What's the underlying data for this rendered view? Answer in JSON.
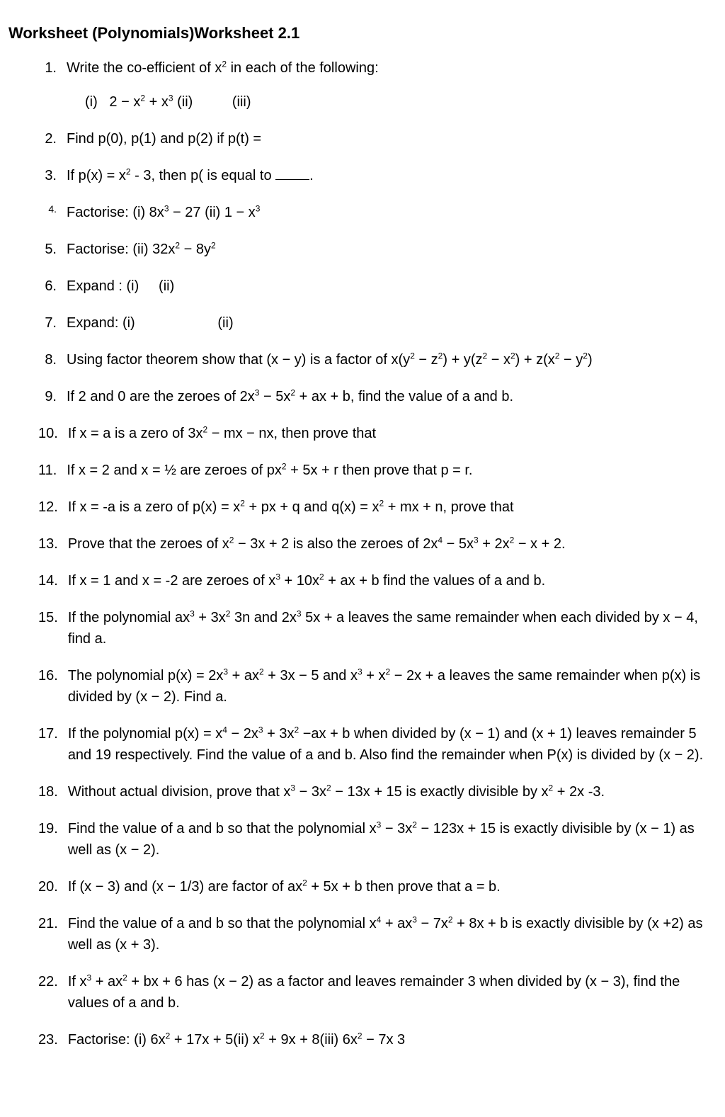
{
  "title": "Worksheet (Polynomials)Worksheet 2.1",
  "items": [
    {
      "n": "1.",
      "html": "Write the co-efficient of x<sup>2</sup> in each of the following:",
      "sub": "(i)&nbsp;&nbsp;&nbsp;2 − x<sup>2</sup> + x<sup>3</sup> (ii)&nbsp;&nbsp;&nbsp;&nbsp;&nbsp;&nbsp;&nbsp;&nbsp;&nbsp;&nbsp;(iii)"
    },
    {
      "n": "2.",
      "html": "Find p(0), p(1) and p(2) if p(t) ="
    },
    {
      "n": "3.",
      "html": "If p(x) = x<sup>2</sup> - 3, then p( is equal to <span class=\"blank\"></span>."
    },
    {
      "n": "4.",
      "small": true,
      "html": "Factorise: (i) 8x<sup>3</sup> − 27 (ii) 1 − x<sup>3</sup>"
    },
    {
      "n": "5.",
      "html": "Factorise: (ii) 32x<sup>2</sup> − 8y<sup>2</sup>"
    },
    {
      "n": "6.",
      "html": "Expand : (i)&nbsp;&nbsp;&nbsp;&nbsp;&nbsp;(ii)"
    },
    {
      "n": "7.",
      "html": "Expand: (i)&nbsp;&nbsp;&nbsp;&nbsp;&nbsp;&nbsp;&nbsp;&nbsp;&nbsp;&nbsp;&nbsp;&nbsp;&nbsp;&nbsp;&nbsp;&nbsp;&nbsp;&nbsp;&nbsp;&nbsp;&nbsp;(ii)"
    },
    {
      "n": "8.",
      "html": "Using factor theorem show that (x − y) is a factor of x(y<sup>2</sup> − z<sup>2</sup>) + y(z<sup>2</sup> − x<sup>2</sup>) + z(x<sup>2</sup> − y<sup>2</sup>)"
    },
    {
      "n": "9.",
      "html": "If 2 and 0 are the zeroes of 2x<sup>3</sup> − 5x<sup>2</sup> + ax + b, find the value of a and b."
    },
    {
      "n": "10.",
      "html": "If x = a is a zero of 3x<sup>2</sup> − mx − nx, then prove that"
    },
    {
      "n": "11.",
      "html": "If x = 2 and x = ½ are zeroes of px<sup>2</sup> + 5x + r then prove that p = r."
    },
    {
      "n": "12.",
      "html": "If x = -a is a zero of p(x) =  x<sup>2</sup> + px + q and q(x) = x<sup>2</sup> + mx + n, prove that"
    },
    {
      "n": "13.",
      "html": "Prove that the zeroes of x<sup>2</sup> − 3x + 2 is also the zeroes of 2x<sup>4</sup> − 5x<sup>3</sup> + 2x<sup>2</sup> − x + 2."
    },
    {
      "n": "14.",
      "html": "If x = 1 and x = -2 are zeroes of x<sup>3</sup> + 10x<sup>2</sup> + ax + b find the values of a and b."
    },
    {
      "n": "15.",
      "html": "If the polynomial ax<sup>3</sup> + 3x<sup>2</sup> 3n and 2x<sup>3</sup> 5x + a leaves the same remainder when each divided by x − 4, find a."
    },
    {
      "n": "16.",
      "html": "The polynomial p(x) = 2x<sup>3</sup> + ax<sup>2</sup> + 3x − 5 and x<sup>3</sup> + x<sup>2</sup> − 2x + a leaves the same remainder when p(x) is divided by (x − 2). Find a."
    },
    {
      "n": "17.",
      "html": "If the polynomial p(x) = x<sup>4</sup> − 2x<sup>3</sup> + 3x<sup>2</sup> −ax + b when divided by (x − 1) and (x + 1) leaves remainder 5 and 19 respectively. Find the value of a and b. Also find the remainder when P(x) is divided by (x − 2)."
    },
    {
      "n": "18.",
      "html": "Without actual division, prove that x<sup>3</sup> − 3x<sup>2</sup> − 13x + 15 is exactly divisible by x<sup>2</sup> + 2x -3."
    },
    {
      "n": "19.",
      "html": "Find the value of a and b so that the polynomial x<sup>3</sup> − 3x<sup>2</sup> − 123x + 15 is exactly divisible by (x − 1) as well as (x − 2)."
    },
    {
      "n": "20.",
      "html": "If (x − 3) and (x − 1/3) are factor of ax<sup>2</sup> + 5x + b then prove that a = b."
    },
    {
      "n": "21.",
      "html": "Find the value of a and b so that the polynomial x<sup>4</sup> + ax<sup>3</sup> − 7x<sup>2</sup> + 8x + b is exactly divisible by (x +2) as well as (x + 3)."
    },
    {
      "n": "22.",
      "html": "If x<sup>3</sup> + ax<sup>2</sup> + bx + 6 has (x − 2) as a factor and leaves remainder 3 when divided by (x − 3), find the values of a and b."
    },
    {
      "n": "23.",
      "html": "Factorise: (i) 6x<sup>2</sup> + 17x + 5(ii) x<sup>2</sup> + 9x + 8(iii) 6x<sup>2</sup> − 7x  3"
    }
  ]
}
